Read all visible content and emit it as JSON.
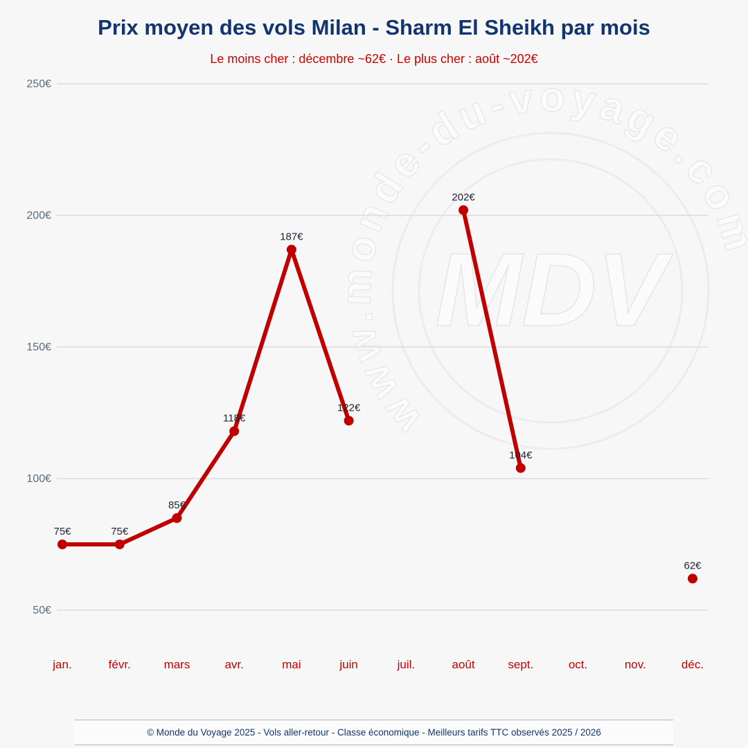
{
  "page": {
    "title": "Prix moyen des vols Milan - Sharm El Sheikh par mois",
    "subtitle": "Le moins cher : décembre ~62€ · Le plus cher : août ~202€",
    "footer": "© Monde du Voyage 2025 - Vols aller-retour - Classe économique - Meilleurs tarifs TTC observés 2025 / 2026"
  },
  "watermark": {
    "url": "www.monde-du-voyage.com",
    "initials": "MDV"
  },
  "chart_data": {
    "type": "line",
    "title": "Prix moyen des vols Milan - Sharm El Sheikh par mois",
    "subtitle": "Le moins cher : décembre ~62€ · Le plus cher : août ~202€",
    "categories": [
      "jan.",
      "févr.",
      "mars",
      "avr.",
      "mai",
      "juin",
      "juil.",
      "août",
      "sept.",
      "oct.",
      "nov.",
      "déc."
    ],
    "values": [
      75,
      75,
      85,
      118,
      187,
      122,
      null,
      202,
      104,
      null,
      null,
      62
    ],
    "point_labels": [
      "75€",
      "75€",
      "85€",
      "118€",
      "187€",
      "122€",
      null,
      "202€",
      "104€",
      null,
      null,
      "62€"
    ],
    "y_ticks": [
      50,
      100,
      150,
      200,
      250
    ],
    "y_tick_labels": [
      "50€",
      "100€",
      "150€",
      "200€",
      "250€"
    ],
    "ylim": [
      50,
      250
    ],
    "xlabel": "",
    "ylabel": "",
    "grid": true,
    "legend": "none",
    "colors": {
      "line": "#c00000",
      "accent": "#cc0000",
      "title": "#12356f",
      "axis": "#5b6b80",
      "grid": "#c9ced8",
      "label": "#1b2430"
    }
  }
}
